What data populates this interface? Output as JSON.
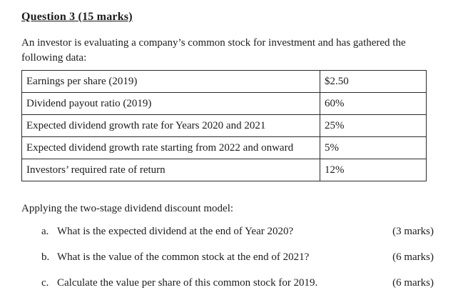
{
  "page": {
    "title": "Question 3 (15 marks)",
    "intro": {
      "line1": "An investor is evaluating a company’s common stock for investment and has gathered the",
      "line2": "following data:"
    },
    "table": {
      "rows": [
        {
          "label": "Earnings per share (2019)",
          "value": "$2.50"
        },
        {
          "label": "Dividend payout ratio (2019)",
          "value": "60%"
        },
        {
          "label": "Expected dividend growth rate for Years 2020 and 2021",
          "value": "25%"
        },
        {
          "label": "Expected dividend growth rate starting from 2022 and onward",
          "value": "5%"
        },
        {
          "label": "Investors’ required rate of return",
          "value": "12%"
        }
      ]
    },
    "model_line": "Applying the two-stage dividend discount model:",
    "questions": [
      {
        "letter": "a.",
        "text": "What is the expected dividend at the end of Year 2020?",
        "marks": "(3 marks)"
      },
      {
        "letter": "b.",
        "text": "What is the value of the common stock at the end of 2021?",
        "marks": "(6 marks)"
      },
      {
        "letter": "c.",
        "text": "Calculate the value per share of this common stock for 2019.",
        "marks": "(6 marks)"
      }
    ],
    "colors": {
      "background": "#ffffff",
      "text": "#1c1c1c",
      "table_border": "#2a2a2a"
    }
  }
}
